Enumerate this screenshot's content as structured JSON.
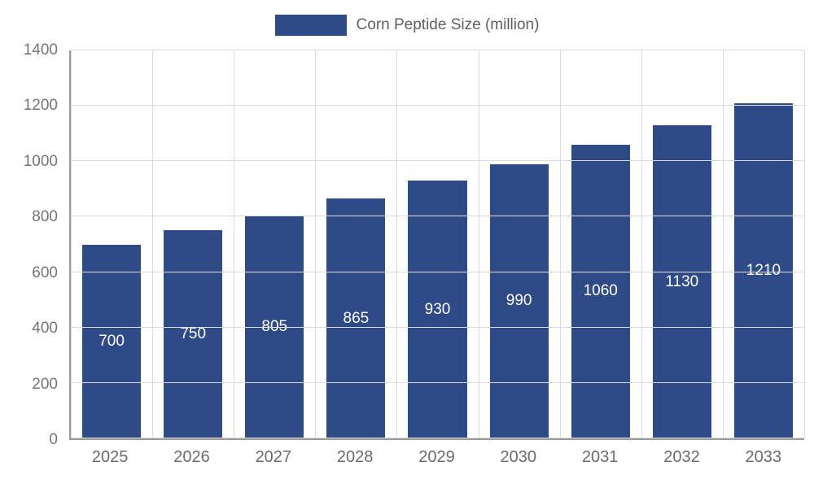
{
  "chart_data": {
    "type": "bar",
    "title": "Corn Peptide Size (million)",
    "categories": [
      "2025",
      "2026",
      "2027",
      "2028",
      "2029",
      "2030",
      "2031",
      "2032",
      "2033"
    ],
    "values": [
      700,
      750,
      805,
      865,
      930,
      990,
      1060,
      1130,
      1210
    ],
    "xlabel": "",
    "ylabel": "",
    "ylim": [
      0,
      1400
    ],
    "ytick_step": 200,
    "grid": true,
    "legend_position": "top-center",
    "bar_color": "#2F4B87",
    "value_label_color": "#FFFFFF",
    "axis_label_color": "#757575",
    "gridline_color": "#DCDCDC"
  }
}
